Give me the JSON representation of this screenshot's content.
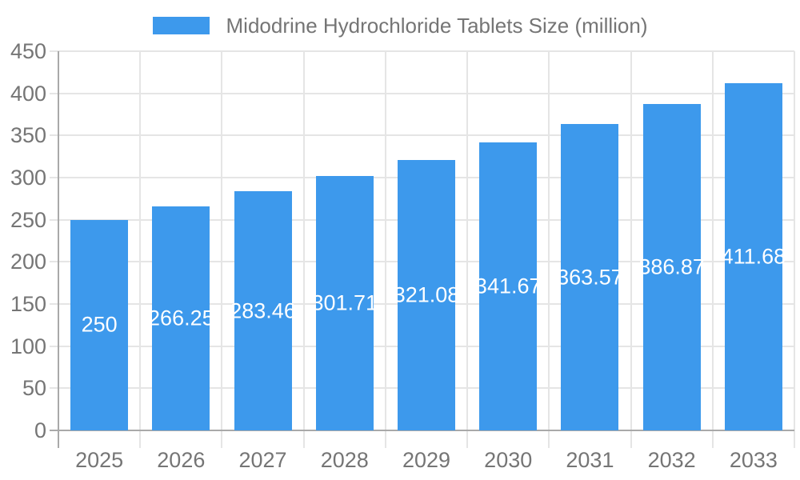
{
  "legend": {
    "label": "Midodrine Hydrochloride Tablets Size (million)"
  },
  "chart_data": {
    "type": "bar",
    "title": "Midodrine Hydrochloride Tablets Size (million)",
    "categories": [
      "2025",
      "2026",
      "2027",
      "2028",
      "2029",
      "2030",
      "2031",
      "2032",
      "2033"
    ],
    "values": [
      250,
      266.25,
      283.46,
      301.71,
      321.08,
      341.67,
      363.57,
      386.87,
      411.68
    ],
    "value_labels": [
      "250",
      "266.25",
      "283.46",
      "301.71",
      "321.08",
      "341.67",
      "363.57",
      "386.87",
      "411.68"
    ],
    "xlabel": "",
    "ylabel": "",
    "ylim": [
      0,
      450
    ],
    "ytick_step": 50,
    "grid": true,
    "legend_position": "top",
    "colors": {
      "bar": "#3d99ec",
      "grid": "#e5e5e5",
      "axis": "#a9a9a9",
      "text": "#757575",
      "value_text": "#ffffff"
    }
  }
}
